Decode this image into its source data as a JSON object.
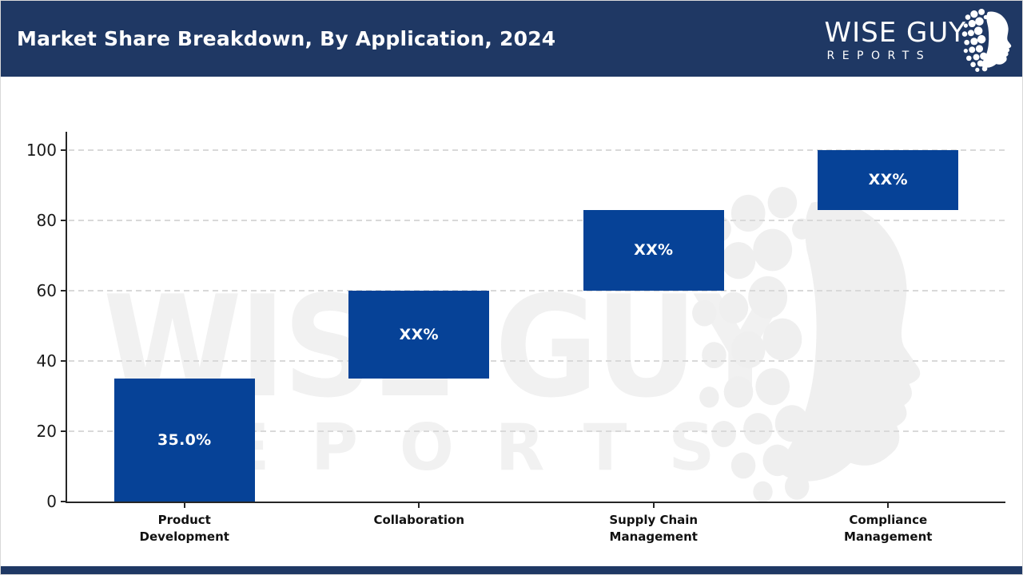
{
  "header": {
    "title": "Market Share Breakdown, By Application, 2024",
    "bg_color": "#1F3864"
  },
  "logo": {
    "line1": "WISE GUY",
    "line2": "REPORTS"
  },
  "watermark": {
    "line1": "WISE GUY",
    "line2": "REPORTS"
  },
  "chart_data": {
    "type": "bar",
    "variant": "waterfall-stacked-breakdown",
    "title": "Market Share Breakdown, By Application, 2024",
    "categories": [
      "Product Development",
      "Collaboration",
      "Supply Chain Management",
      "Compliance Management"
    ],
    "bars": [
      {
        "category": "Product Development",
        "label_lines": [
          "Product",
          "Development"
        ],
        "start": 0,
        "end": 35,
        "size": 35,
        "label": "35.0%"
      },
      {
        "category": "Collaboration",
        "label_lines": [
          "Collaboration"
        ],
        "start": 35,
        "end": 60,
        "size": 25,
        "label": "XX%"
      },
      {
        "category": "Supply Chain Management",
        "label_lines": [
          "Supply Chain",
          "Management"
        ],
        "start": 60,
        "end": 83,
        "size": 23,
        "label": "XX%"
      },
      {
        "category": "Compliance Management",
        "label_lines": [
          "Compliance",
          "Management"
        ],
        "start": 83,
        "end": 100,
        "size": 17,
        "label": "XX%"
      }
    ],
    "ylim": [
      0,
      105
    ],
    "yticks": [
      0,
      20,
      40,
      60,
      80,
      100
    ],
    "grid": "horizontal-dashed",
    "bar_color": "#064297",
    "bar_label_color": "#ffffff",
    "axis_color": "#262626",
    "grid_color": "#d9d9d9",
    "legend": "none"
  }
}
